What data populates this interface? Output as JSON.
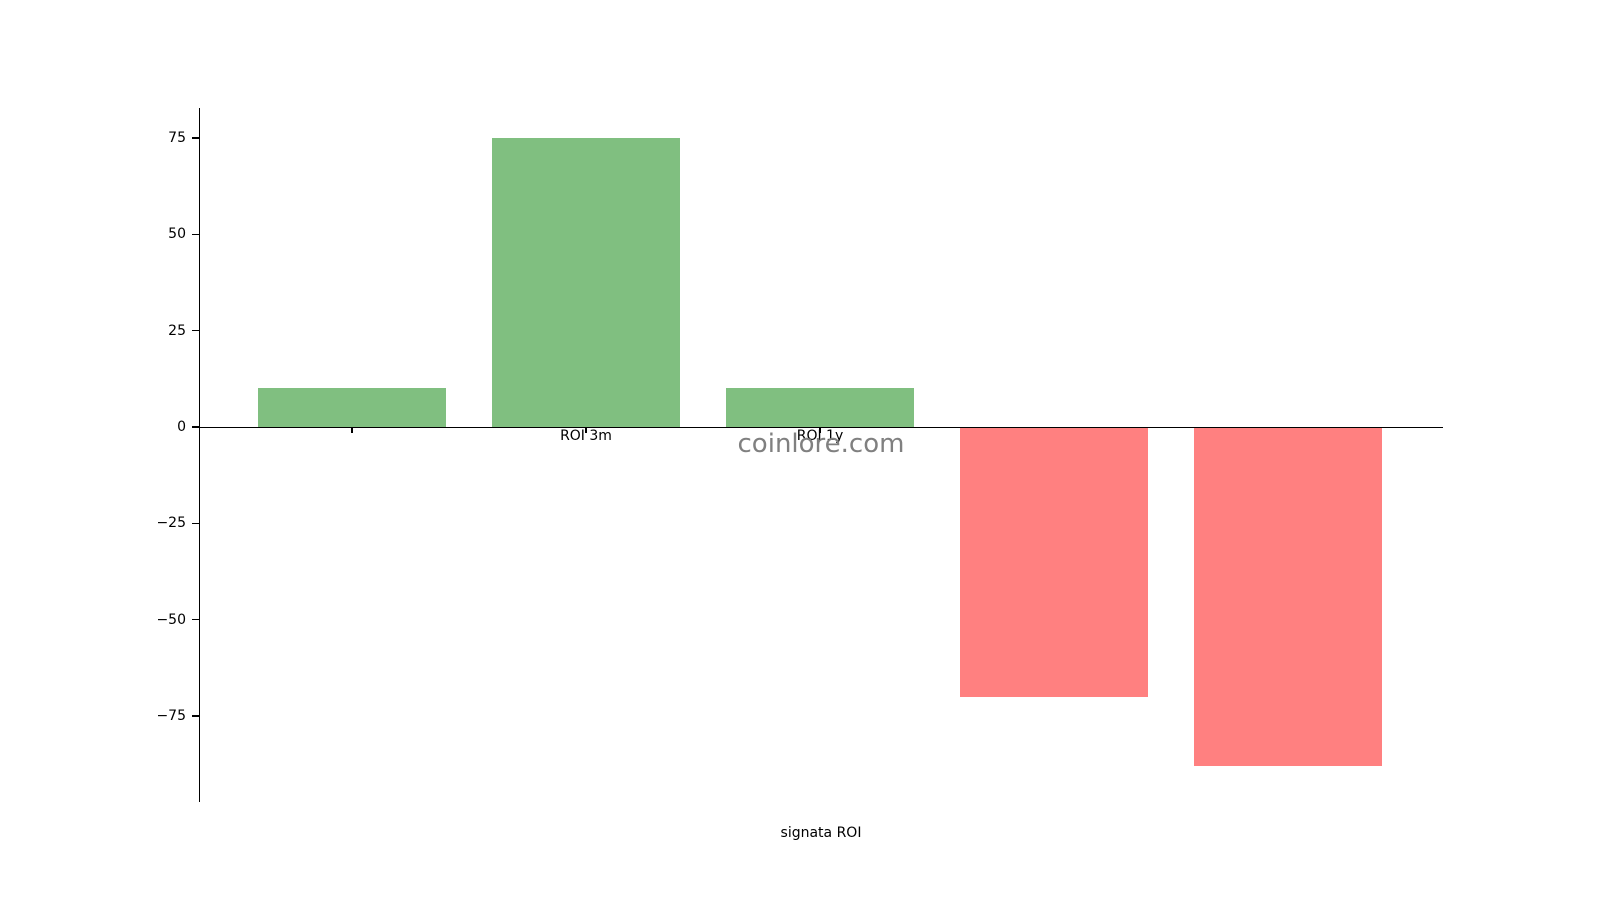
{
  "page": {
    "background_color": "#ffffff"
  },
  "watermark": {
    "text": "coinlore.com",
    "color": "#808080"
  },
  "chart_data": {
    "type": "bar",
    "title": "",
    "xlabel": "signata ROI",
    "ylabel": "",
    "categories": [
      "",
      "ROI 3m",
      "ROI 1y",
      "",
      ""
    ],
    "values": [
      10,
      75,
      10,
      -70,
      -88
    ],
    "positive_color": "#80bf80",
    "negative_color": "#ff8080",
    "axis_color": "#000000",
    "yticks": [
      75,
      50,
      25,
      0,
      -25,
      -50,
      -75
    ],
    "ylim": [
      -97,
      83
    ],
    "grid": false,
    "legend": null,
    "visible_x_tick_labels": [
      "ROI 3m",
      "ROI 1y"
    ]
  }
}
